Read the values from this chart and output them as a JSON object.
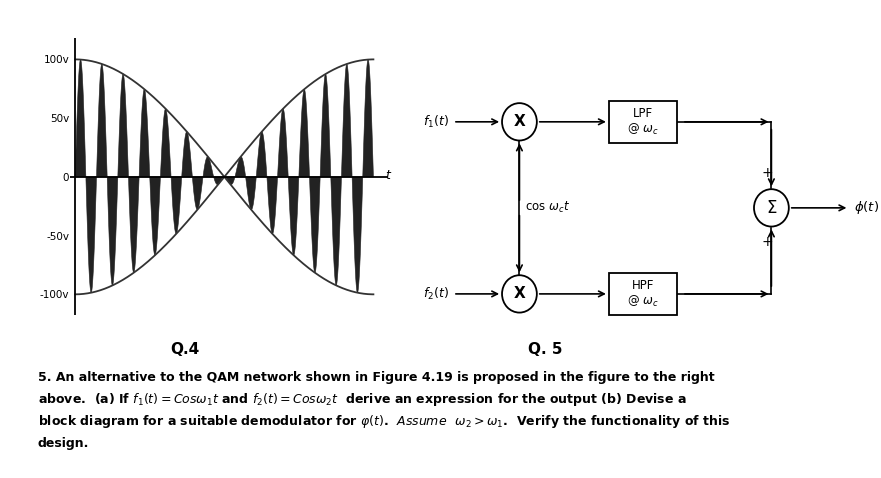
{
  "bg_color": "#ffffff",
  "y_ticks": [
    100,
    50,
    0,
    -50,
    -100
  ],
  "y_labels": [
    "100v",
    "50v",
    "0",
    "-50v",
    "-100v"
  ],
  "q4_label": "Q.4",
  "q5_label": "Q. 5",
  "sigma_label": "Σ",
  "carrier_freq": 28,
  "mod_freq": 1,
  "amplitude": 100
}
